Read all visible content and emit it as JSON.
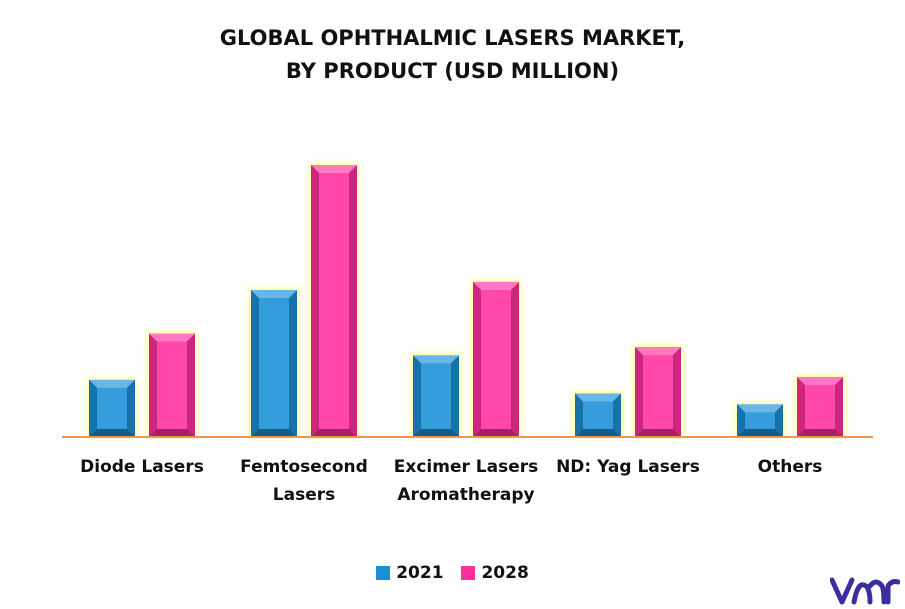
{
  "chart_data": {
    "type": "bar",
    "title": [
      "GLOBAL OPHTHALMIC LASERS MARKET,",
      "BY PRODUCT (USD MILLION)"
    ],
    "xlabel": "",
    "ylabel": "",
    "categories": [
      [
        "Diode Lasers"
      ],
      [
        "Femtosecond",
        "Lasers"
      ],
      [
        "Excimer Lasers",
        "Aromatherapy"
      ],
      [
        "ND: Yag Lasers"
      ],
      [
        "Others"
      ]
    ],
    "series": [
      {
        "name": "2021",
        "color": "#1a8fd6",
        "values": [
          21,
          54,
          30,
          16,
          12
        ]
      },
      {
        "name": "2028",
        "color": "#ff2f9e",
        "values": [
          38,
          100,
          57,
          33,
          22
        ]
      }
    ],
    "ylim": [
      0,
      110
    ],
    "grid": false,
    "legend": "bottom-center"
  },
  "colors": {
    "axis_line": "#f0954a",
    "glow": "#ffff9a",
    "logo": "#3b2fa0"
  },
  "logo": {
    "icon": "vmr-logo-icon"
  }
}
